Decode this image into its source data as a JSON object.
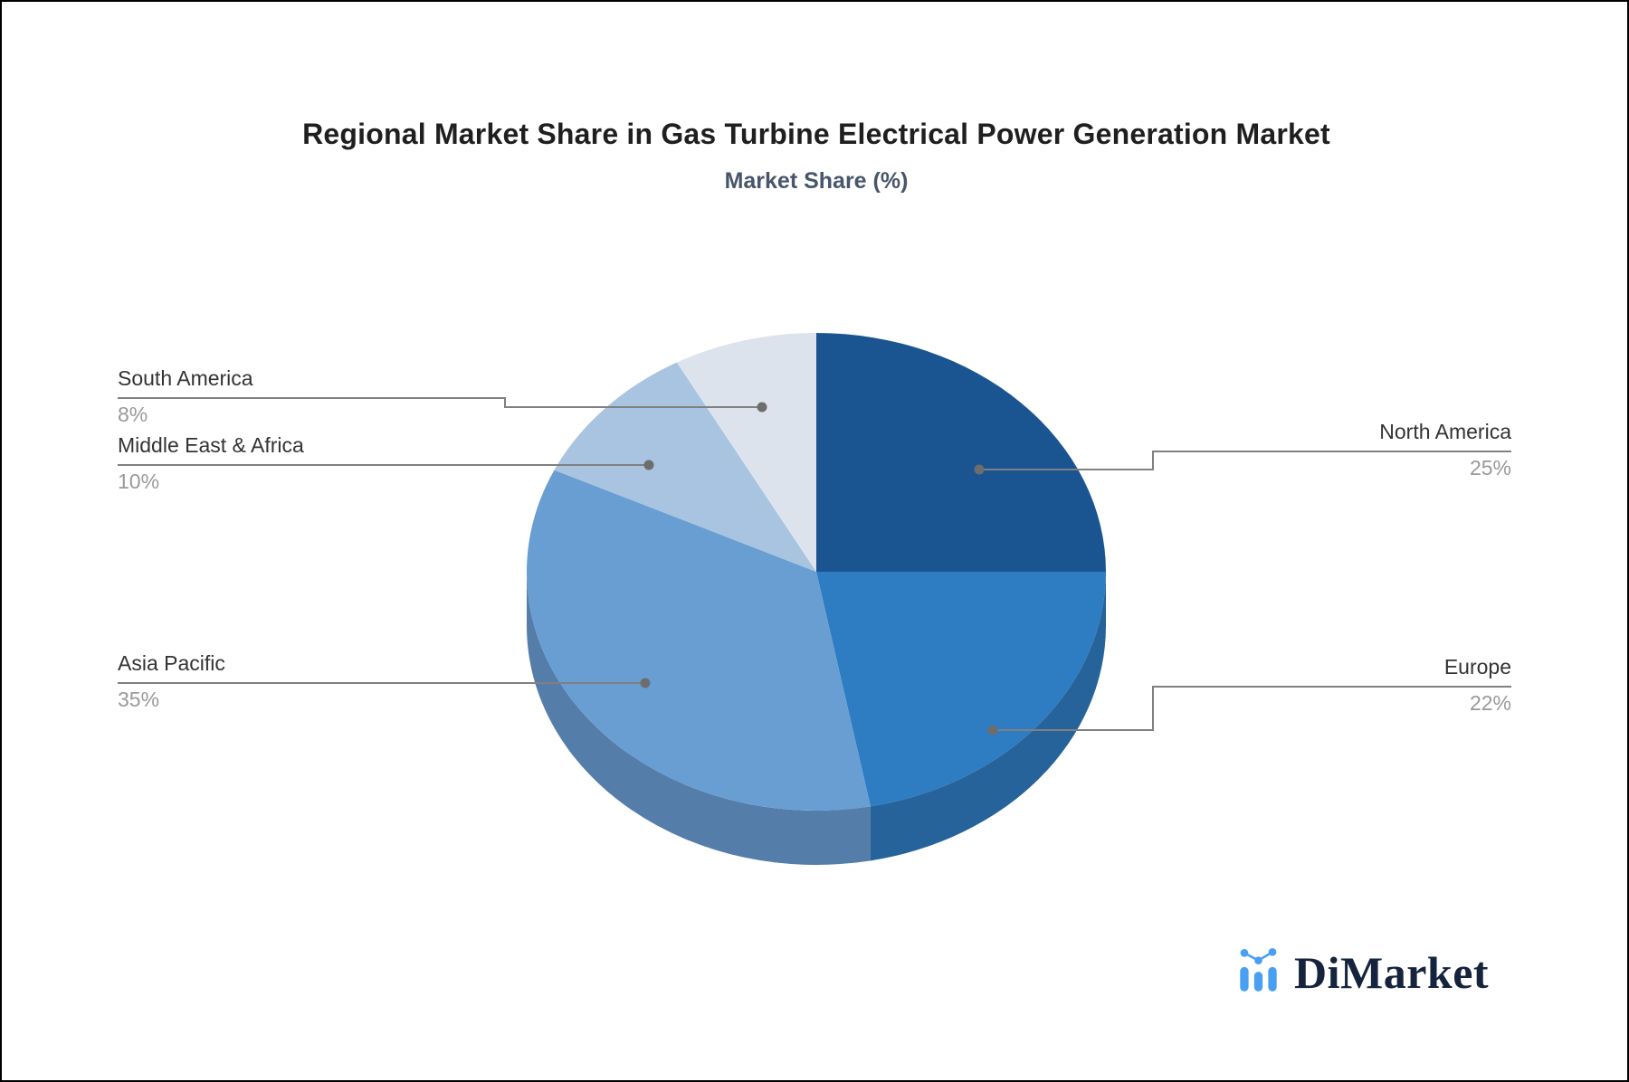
{
  "title": "Regional Market Share in Gas Turbine Electrical Power Generation Market",
  "subtitle": "Market Share (%)",
  "chart_data": {
    "type": "pie",
    "style": "3d-pie",
    "title": "Regional Market Share in Gas Turbine Electrical Power Generation Market",
    "subtitle": "Market Share (%)",
    "unit": "%",
    "start_angle_deg": 0,
    "direction": "clockwise",
    "legend_position": "none",
    "label_style": "outside-with-leader-lines",
    "categories": [
      "North America",
      "Europe",
      "Asia Pacific",
      "Middle East & Africa",
      "South America"
    ],
    "values": [
      25,
      22,
      35,
      10,
      8
    ],
    "slices": [
      {
        "label": "North America",
        "value": 25,
        "pct_label": "25%",
        "color": "#1b5591",
        "label_side": "right"
      },
      {
        "label": "Europe",
        "value": 22,
        "pct_label": "22%",
        "color": "#2e7cc1",
        "label_side": "right"
      },
      {
        "label": "Asia Pacific",
        "value": 35,
        "pct_label": "35%",
        "color": "#699ed3",
        "label_side": "left"
      },
      {
        "label": "Middle East & Africa",
        "value": 10,
        "pct_label": "10%",
        "color": "#a8c4e0",
        "label_side": "left"
      },
      {
        "label": "South America",
        "value": 8,
        "pct_label": "8%",
        "color": "#dde3ec",
        "label_side": "left"
      }
    ],
    "colors": {
      "leader_line": "#808080",
      "leader_dot": "#6d6d6d",
      "label_name_text": "#333333",
      "label_value_text": "#999999",
      "title_text": "#1f1f1f",
      "subtitle_text": "#48556a"
    }
  },
  "branding": {
    "logo_text": "DiMarket",
    "logo_icon": "bar-chart-trend-icon",
    "icon_color": "#49a0f2",
    "text_color": "#16233d"
  }
}
